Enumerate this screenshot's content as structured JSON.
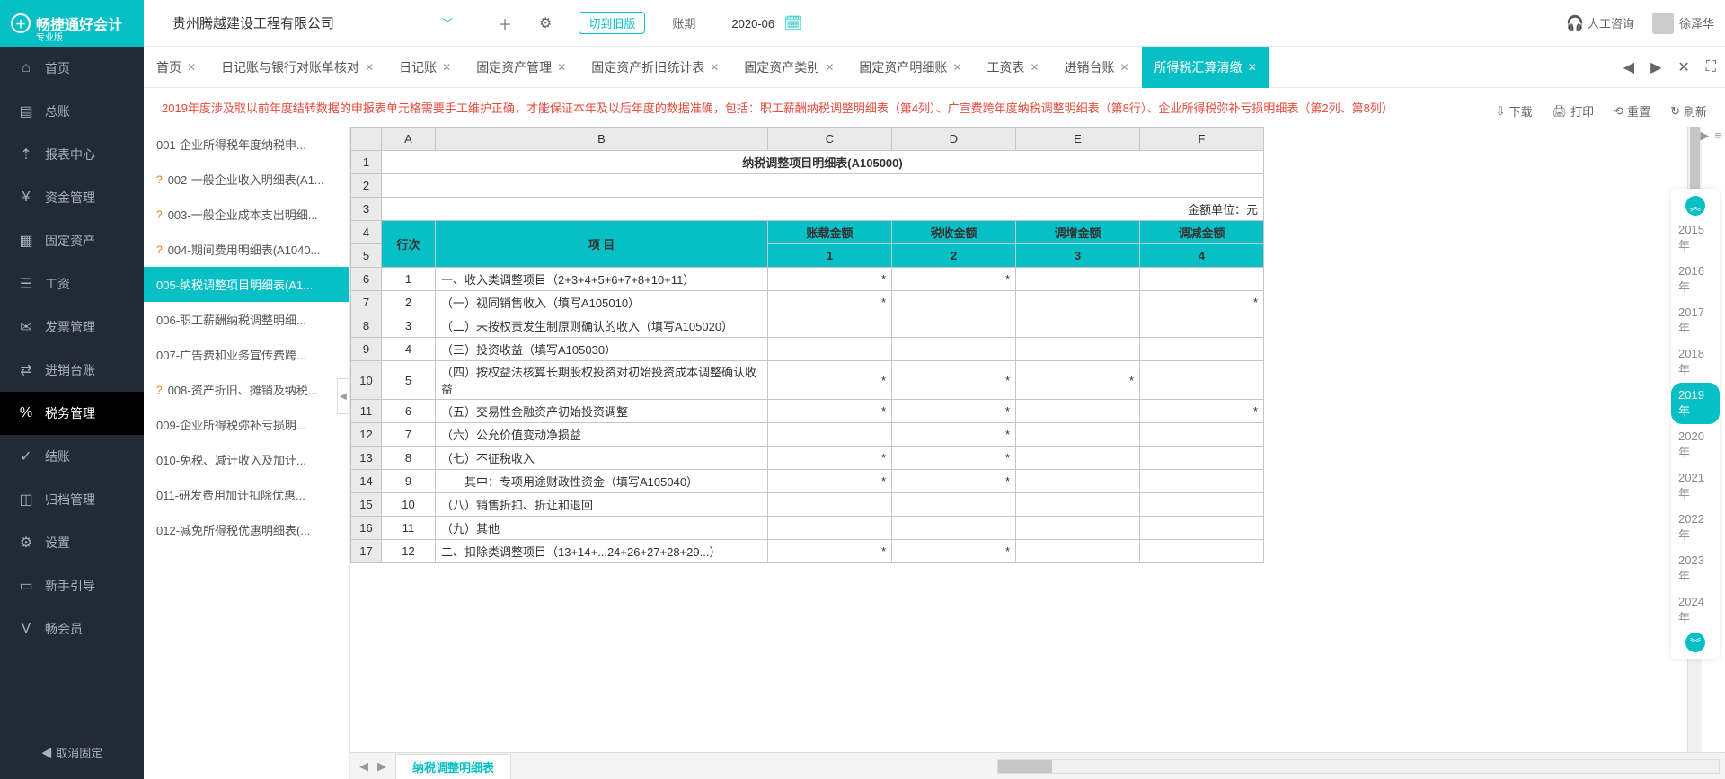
{
  "brand": {
    "name": "畅捷通好会计",
    "edition": "专业版"
  },
  "company": "贵州腾越建设工程有限公司",
  "top": {
    "switch_old": "切到旧版",
    "period_label": "账期",
    "period_value": "2020-06",
    "consult": "人工咨询",
    "user": "徐泽华"
  },
  "sidebar": [
    {
      "icon": "⌂",
      "label": "首页"
    },
    {
      "icon": "▤",
      "label": "总账"
    },
    {
      "icon": "⇡",
      "label": "报表中心"
    },
    {
      "icon": "¥",
      "label": "资金管理"
    },
    {
      "icon": "▦",
      "label": "固定资产"
    },
    {
      "icon": "☰",
      "label": "工资"
    },
    {
      "icon": "✉",
      "label": "发票管理"
    },
    {
      "icon": "⇄",
      "label": "进销台账"
    },
    {
      "icon": "%",
      "label": "税务管理",
      "active": true
    },
    {
      "icon": "✓",
      "label": "结账"
    },
    {
      "icon": "◫",
      "label": "归档管理"
    },
    {
      "icon": "⚙",
      "label": "设置"
    },
    {
      "icon": "▭",
      "label": "新手引导"
    },
    {
      "icon": "V",
      "label": "畅会员"
    }
  ],
  "sidebar_footer": "◀ 取消固定",
  "tabs": [
    {
      "label": "首页"
    },
    {
      "label": "日记账与银行对账单核对"
    },
    {
      "label": "日记账"
    },
    {
      "label": "固定资产管理"
    },
    {
      "label": "固定资产折旧统计表"
    },
    {
      "label": "固定资产类别"
    },
    {
      "label": "固定资产明细账"
    },
    {
      "label": "工资表"
    },
    {
      "label": "进销台账"
    },
    {
      "label": "所得税汇算清缴",
      "active": true
    }
  ],
  "notice": "2019年度涉及取以前年度结转数据的申报表单元格需要手工维护正确，才能保证本年及以后年度的数据准确，包括：职工薪酬纳税调整明细表（第4列）、广宣费跨年度纳税调整明细表（第8行）、企业所得税弥补亏损明细表（第2列、第8列）",
  "toolbar": {
    "download": "下载",
    "print": "打印",
    "reset": "重置",
    "refresh": "刷新"
  },
  "itemlist": [
    {
      "q": false,
      "label": "001-企业所得税年度纳税申..."
    },
    {
      "q": true,
      "label": "002-一般企业收入明细表(A1..."
    },
    {
      "q": true,
      "label": "003-一般企业成本支出明细..."
    },
    {
      "q": true,
      "label": "004-期间费用明细表(A1040..."
    },
    {
      "q": false,
      "label": "005-纳税调整项目明细表(A1...",
      "selected": true
    },
    {
      "q": false,
      "label": "006-职工薪酬纳税调整明细..."
    },
    {
      "q": false,
      "label": "007-广告费和业务宣传费跨..."
    },
    {
      "q": true,
      "label": "008-资产折旧、摊销及纳税..."
    },
    {
      "q": false,
      "label": "009-企业所得税弥补亏损明..."
    },
    {
      "q": false,
      "label": "010-免税、减计收入及加计..."
    },
    {
      "q": false,
      "label": "011-研发费用加计扣除优惠..."
    },
    {
      "q": false,
      "label": "012-减免所得税优惠明细表(..."
    }
  ],
  "sheet": {
    "cols": [
      "A",
      "B",
      "C",
      "D",
      "E",
      "F"
    ],
    "title": "纳税调整项目明细表(A105000)",
    "unit": "金额单位：元",
    "header1": {
      "seq": "行次",
      "item": "项 目",
      "c": "账载金额",
      "d": "税收金额",
      "e": "调增金额",
      "f": "调减金额"
    },
    "header2": {
      "c": "1",
      "d": "2",
      "e": "3",
      "f": "4"
    },
    "rows": [
      {
        "rn": 6,
        "seq": "1",
        "txt": "一、收入类调整项目（2+3+4+5+6+7+8+10+11）",
        "c": "*",
        "d": "*"
      },
      {
        "rn": 7,
        "seq": "2",
        "txt": "（一）视同销售收入（填写A105010）",
        "c": "*",
        "f": "*"
      },
      {
        "rn": 8,
        "seq": "3",
        "txt": "（二）未按权责发生制原则确认的收入（填写A105020）",
        "tall": true
      },
      {
        "rn": 9,
        "seq": "4",
        "txt": "（三）投资收益（填写A105030）"
      },
      {
        "rn": 10,
        "seq": "5",
        "txt": "（四）按权益法核算长期股权投资对初始投资成本调整确认收益",
        "c": "*",
        "d": "*",
        "e": "*",
        "tall": true
      },
      {
        "rn": 11,
        "seq": "6",
        "txt": "（五）交易性金融资产初始投资调整",
        "c": "*",
        "d": "*",
        "f": "*"
      },
      {
        "rn": 12,
        "seq": "7",
        "txt": "（六）公允价值变动净损益",
        "d": "*"
      },
      {
        "rn": 13,
        "seq": "8",
        "txt": "（七）不征税收入",
        "c": "*",
        "d": "*"
      },
      {
        "rn": 14,
        "seq": "9",
        "txt": "　　其中：专项用途财政性资金（填写A105040）",
        "c": "*",
        "d": "*"
      },
      {
        "rn": 15,
        "seq": "10",
        "txt": "（八）销售折扣、折让和退回"
      },
      {
        "rn": 16,
        "seq": "11",
        "txt": "（九）其他"
      },
      {
        "rn": 17,
        "seq": "12",
        "txt": "二、扣除类调整项目（13+14+...24+26+27+28+29...）",
        "c": "*",
        "d": "*"
      }
    ],
    "tab_name": "纳税调整明细表"
  },
  "years": [
    "2015年",
    "2016年",
    "2017年",
    "2018年",
    "2019年",
    "2020年",
    "2021年",
    "2022年",
    "2023年",
    "2024年"
  ],
  "active_year": "2019年"
}
